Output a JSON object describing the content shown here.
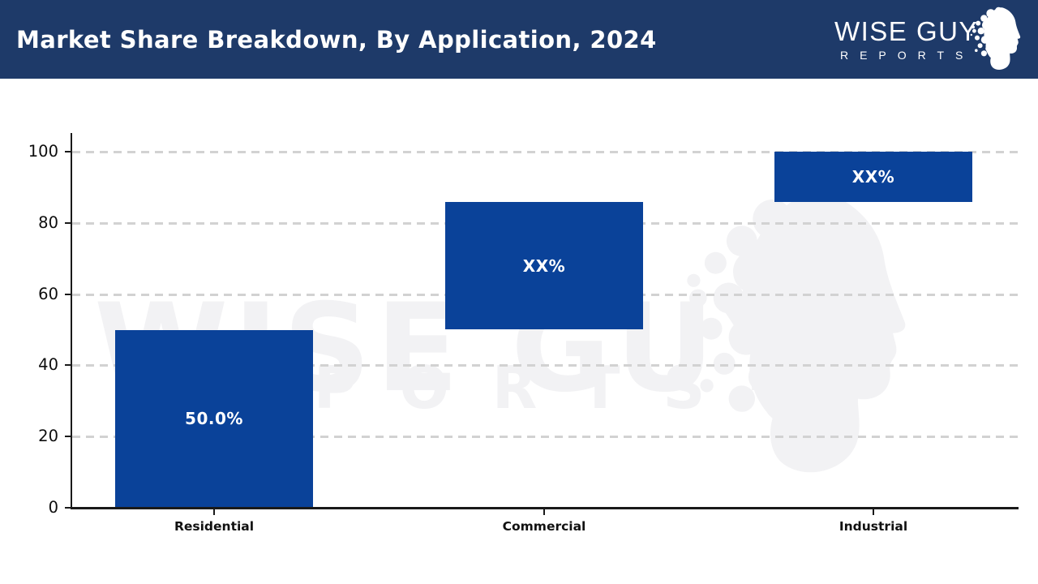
{
  "header": {
    "title": "Market Share Breakdown, By Application, 2024"
  },
  "logo": {
    "name_line": "WISE GUY",
    "sub_line": "REPORTS"
  },
  "watermark": {
    "name_line": "WISE GUY",
    "sub_line": "R E P O R T S"
  },
  "chart_data": {
    "type": "bar",
    "subtype": "percentage-breakdown-floating-bars",
    "title": "Market Share Breakdown, By Application, 2024",
    "categories": [
      "Residential",
      "Commercial",
      "Industrial"
    ],
    "series": [
      {
        "name": "Market share (%)",
        "bars": [
          {
            "category": "Residential",
            "start": 0,
            "end": 50.0,
            "value_label": "50.0%"
          },
          {
            "category": "Commercial",
            "start": 50.0,
            "end": 85.8,
            "value_label": "XX%"
          },
          {
            "category": "Industrial",
            "start": 85.8,
            "end": 100.0,
            "value_label": "XX%"
          }
        ]
      }
    ],
    "yticks": [
      0,
      20,
      40,
      60,
      80,
      100
    ],
    "ylim": [
      0,
      105
    ],
    "xlabel": "",
    "ylabel": "",
    "grid": "horizontal-dashed",
    "legend": "none",
    "colors": {
      "bar": "#0a4299",
      "bar_label": "#ffffff",
      "grid_line": "#d2d2d2",
      "axis_line": "#1a1a1a",
      "tick_label": "#0d0d0d",
      "header_bg": "#1e3a69",
      "header_text": "#ffffff",
      "watermark": "#f2f2f4",
      "background": "#ffffff"
    }
  }
}
